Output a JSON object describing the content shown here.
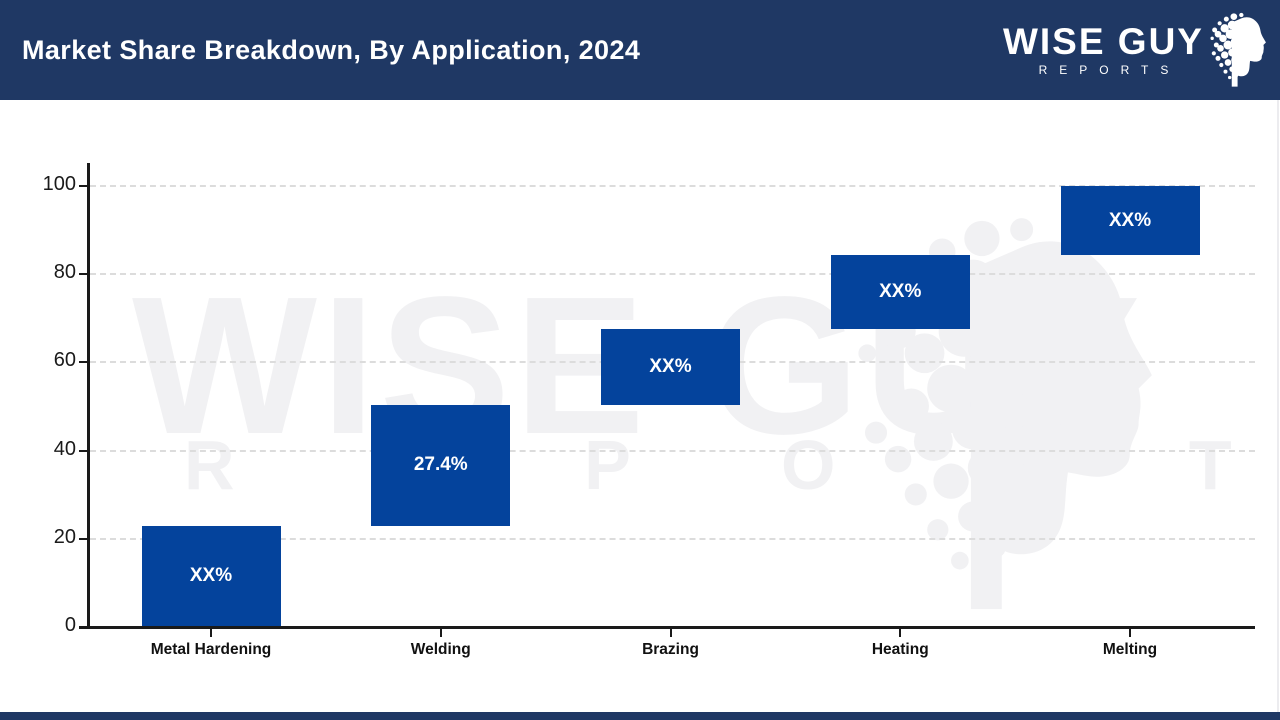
{
  "header": {
    "title": "Market Share Breakdown, By Application, 2024",
    "bg_color": "#1F3864",
    "logo": {
      "line1": "WISE GUY",
      "line2": "REPORTS"
    }
  },
  "watermark": {
    "line1": "WISE GUY",
    "line2": "R E P O R T S"
  },
  "chart_data": {
    "type": "bar",
    "subtype": "waterfall",
    "title": "Market Share Breakdown, By Application, 2024",
    "categories": [
      "Metal Hardening",
      "Welding",
      "Brazing",
      "Heating",
      "Melting"
    ],
    "segments": [
      {
        "category": "Metal Hardening",
        "start": 0,
        "end": 23,
        "label": "XX%"
      },
      {
        "category": "Welding",
        "start": 23,
        "end": 50.4,
        "label": "27.4%"
      },
      {
        "category": "Brazing",
        "start": 50.4,
        "end": 67.5,
        "label": "XX%"
      },
      {
        "category": "Heating",
        "start": 67.5,
        "end": 84.3,
        "label": "XX%"
      },
      {
        "category": "Melting",
        "start": 84.3,
        "end": 100,
        "label": "XX%"
      }
    ],
    "ylim": [
      0,
      100
    ],
    "yticks": [
      0,
      20,
      40,
      60,
      80,
      100
    ],
    "grid": {
      "horizontal": true,
      "style": "dashed",
      "color": "#dcdcdc"
    },
    "legend": "none",
    "bar_color": "#04439C",
    "bar_label_color": "#ffffff",
    "axis_color": "#1a1a1a"
  },
  "footer": {
    "bg_color": "#1F3864"
  }
}
